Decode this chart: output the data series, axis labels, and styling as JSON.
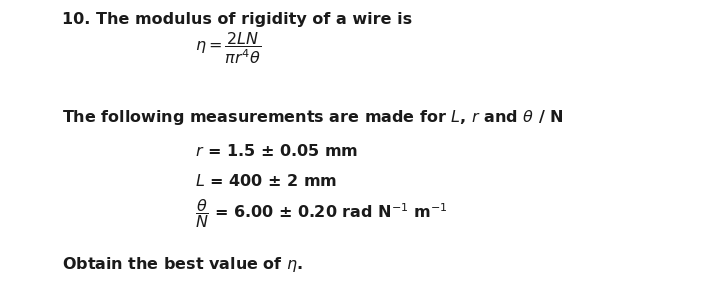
{
  "bg_color": "#ffffff",
  "text_color": "#1a1a1a",
  "figsize": [
    7.19,
    2.82
  ],
  "dpi": 100,
  "line1": "10. The modulus of rigidity of a wire is",
  "line3": "The following measurements are made for $L$, $r$ and $\\theta$ / N",
  "line4": "$r$ = 1.5 ± 0.05 mm",
  "line5": "$L$ = 400 ± 2 mm",
  "line6_rest": "= 6.00 ± 0.20 rad N$^{-1}$ m$^{-1}$",
  "line7": "Obtain the best value of $\\eta$.",
  "fontsize_main": 11.5,
  "fontsize_formula": 11.5,
  "font_weight": "bold"
}
